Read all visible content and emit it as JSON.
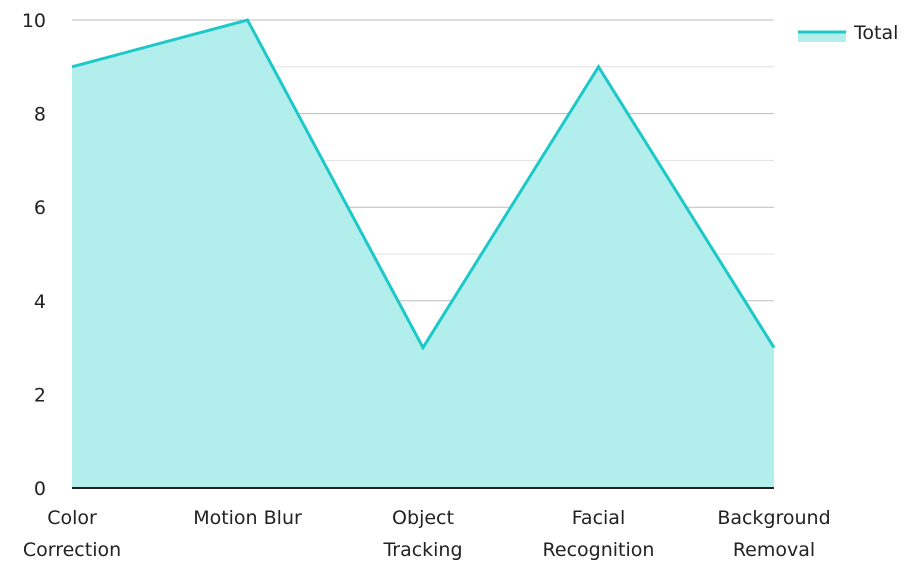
{
  "chart_data": {
    "type": "area",
    "categories": [
      [
        "Color",
        "Correction"
      ],
      [
        "Motion Blur"
      ],
      [
        "Object",
        "Tracking"
      ],
      [
        "Facial",
        "Recognition"
      ],
      [
        "Background",
        "Removal"
      ]
    ],
    "series": [
      {
        "name": "Total",
        "values": [
          9,
          10,
          3,
          9,
          3
        ]
      }
    ],
    "ylim": [
      0,
      10
    ],
    "yticks": [
      "0",
      "2",
      "4",
      "6",
      "8",
      "10"
    ],
    "minor_gridlines": true,
    "legend_position": "top-right",
    "colors": {
      "line": "#1cc8c8",
      "fill": "#b2eeec",
      "grid_major": "#bdbdbd",
      "grid_minor": "#e0e0e0",
      "axis": "#222222"
    }
  }
}
